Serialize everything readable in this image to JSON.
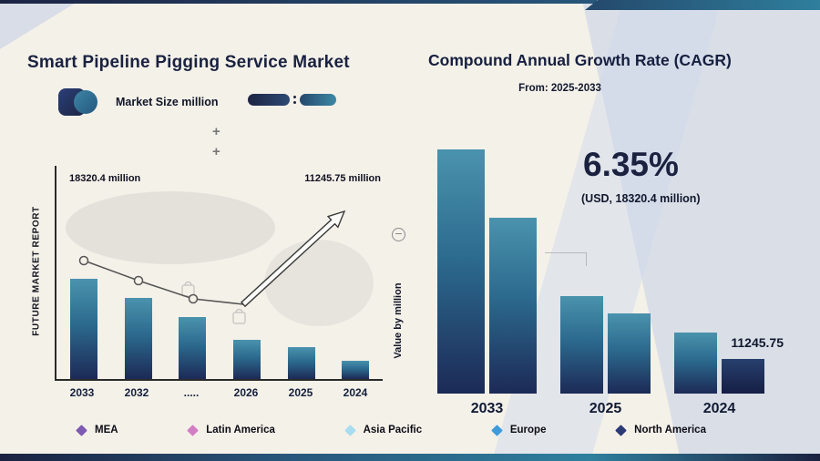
{
  "header": {
    "left_title": "Smart Pipeline Pigging Service Market",
    "market_size_label": "Market Size million",
    "right_title": "Compound Annual Growth Rate (CAGR)",
    "right_subtitle": "From: 2025-2033"
  },
  "cagr": {
    "value": "6.35%",
    "caption": "(USD, 18320.4 million)"
  },
  "left_chart": {
    "watermark": "FUTURE MARKET REPORT",
    "annotation_left": "18320.4 million",
    "annotation_right": "11245.75 million"
  },
  "right_chart": {
    "axis_label": "Value by million",
    "value_label": "11245.75"
  },
  "decor": {
    "plus": "+"
  },
  "chart_data": [
    {
      "type": "bar",
      "title": "Smart Pipeline Pigging Service Market - Market Size million",
      "categories": [
        "2033",
        "2032",
        ".....",
        "2026",
        "2025",
        "2024"
      ],
      "bar_heights_pct": [
        100,
        81,
        62,
        39,
        32,
        18
      ],
      "labeled_values": [
        {
          "category": "2033",
          "value": 18320.4,
          "unit": "million"
        },
        {
          "category": "2024",
          "value": 11245.75,
          "unit": "million"
        }
      ],
      "legend": [
        "Market Size million"
      ],
      "notes": "Bars descend from 2033 to 2024; gray trend line with circle markers descends over first bars then an outlined arrow rises to the upper right"
    },
    {
      "type": "bar",
      "title": "Compound Annual Growth Rate (CAGR) From: 2025-2033",
      "categories": [
        "2033",
        "2025",
        "2024"
      ],
      "series": [
        {
          "name": "series-1",
          "bar_heights_pct": [
            100,
            40,
            25
          ]
        },
        {
          "name": "series-2",
          "bar_heights_pct": [
            72,
            33,
            14
          ]
        }
      ],
      "cagr_pct": 6.35,
      "base_value_usd_million": 18320.4,
      "end_value_label": "11245.75",
      "ylabel": "Value by million"
    }
  ],
  "legend": {
    "items": [
      {
        "label": "MEA",
        "color": "#7c5bb0"
      },
      {
        "label": "Latin America",
        "color": "#d27ec4"
      },
      {
        "label": "Asia Pacific",
        "color": "#a8dcf0"
      },
      {
        "label": "Europe",
        "color": "#3f9bd9"
      },
      {
        "label": "North America",
        "color": "#2c3a75"
      }
    ]
  },
  "colors": {
    "background": "#f4f1e9",
    "accent_navy": "#1c2443",
    "accent_teal": "#2f7f9d",
    "bar_gradient_top": "#4a93ad",
    "bar_gradient_bottom": "#1c2a56",
    "text_dark": "#14203c"
  }
}
